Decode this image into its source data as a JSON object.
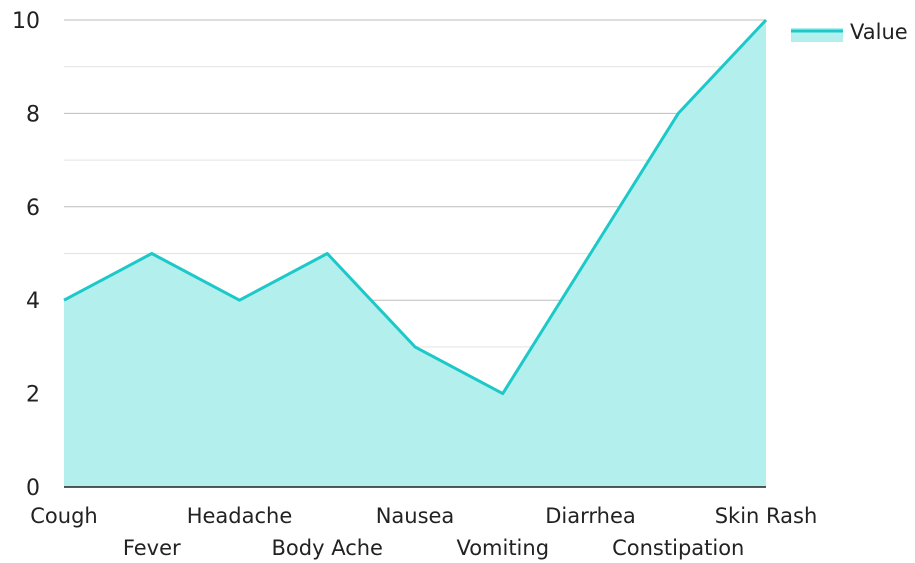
{
  "chart_data": {
    "type": "area",
    "categories": [
      "Cough",
      "Fever",
      "Headache",
      "Body Ache",
      "Nausea",
      "Vomiting",
      "Diarrhea",
      "Constipation",
      "Skin Rash"
    ],
    "series": [
      {
        "name": "Value",
        "values": [
          4,
          5,
          4,
          5,
          3,
          2,
          5,
          8,
          10
        ]
      }
    ],
    "y_ticks": [
      "0",
      "2",
      "4",
      "6",
      "8",
      "10"
    ],
    "ylim": [
      0,
      10
    ],
    "y_minor_step": 1,
    "grid": true,
    "legend": "top-right",
    "colors": {
      "line": "#1cc8c8",
      "fill": "#b2efed"
    }
  }
}
